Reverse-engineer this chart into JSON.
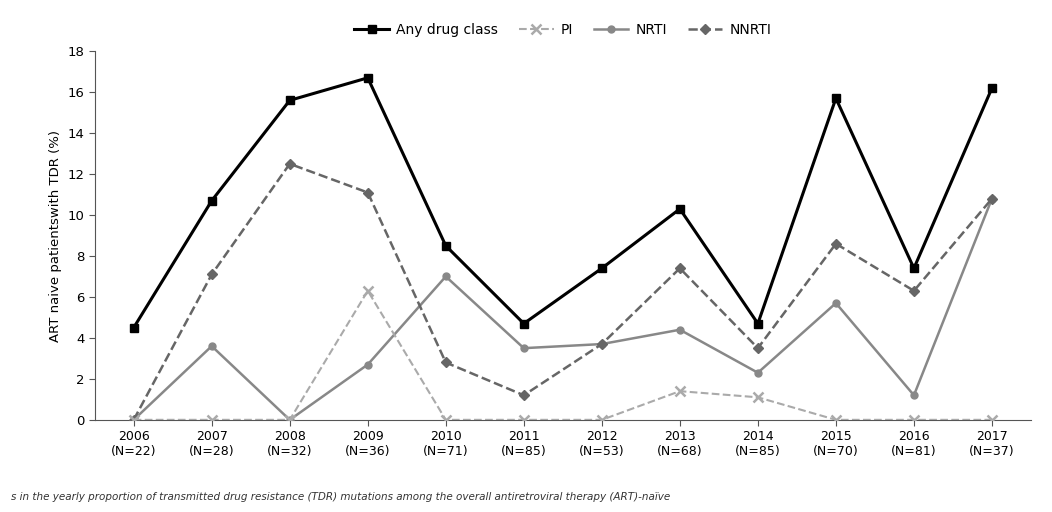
{
  "years": [
    2006,
    2007,
    2008,
    2009,
    2010,
    2011,
    2012,
    2013,
    2014,
    2015,
    2016,
    2017
  ],
  "n_labels": [
    "(N=22)",
    "(N=28)",
    "(N=32)",
    "(N=36)",
    "(N=71)",
    "(N=85)",
    "(N=53)",
    "(N=68)",
    "(N=85)",
    "(N=70)",
    "(N=81)",
    "(N=37)"
  ],
  "any_drug": [
    4.5,
    10.7,
    15.6,
    16.7,
    8.5,
    4.7,
    7.4,
    10.3,
    4.7,
    15.7,
    7.4,
    16.2
  ],
  "pi": [
    0.0,
    0.0,
    0.0,
    6.3,
    0.0,
    0.0,
    0.0,
    1.4,
    1.1,
    0.0,
    0.0,
    0.0
  ],
  "nrti": [
    0.0,
    3.6,
    0.0,
    2.7,
    7.0,
    3.5,
    3.7,
    4.4,
    2.3,
    5.7,
    1.2,
    10.8
  ],
  "nnrti": [
    0.0,
    7.1,
    12.5,
    11.1,
    2.8,
    1.2,
    3.7,
    7.4,
    3.5,
    8.6,
    6.3,
    10.8
  ],
  "ylabel": "ART naive patientswith TDR (%)",
  "caption": "s in the yearly proportion of transmitted drug resistance (TDR) mutations among the overall antiretroviral therapy (ART)-naïve",
  "ylim": [
    0,
    18
  ],
  "yticks": [
    0,
    2,
    4,
    6,
    8,
    10,
    12,
    14,
    16,
    18
  ],
  "any_drug_color": "#000000",
  "pi_color": "#aaaaaa",
  "nrti_color": "#888888",
  "nnrti_color": "#666666",
  "background_color": "#ffffff"
}
